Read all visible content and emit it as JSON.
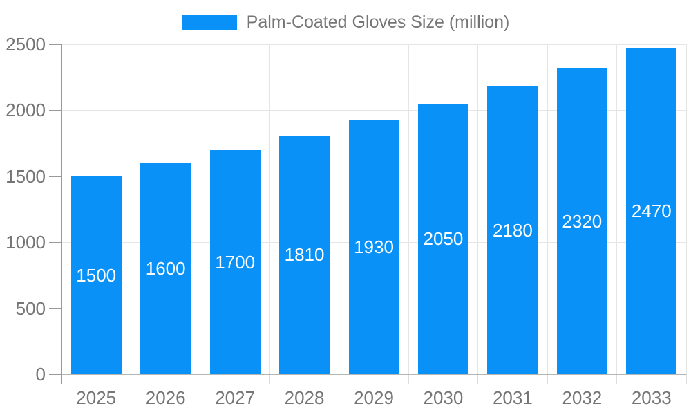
{
  "chart_data": {
    "type": "bar",
    "title": "Palm-Coated Gloves Size (million)",
    "categories": [
      "2025",
      "2026",
      "2027",
      "2028",
      "2029",
      "2030",
      "2031",
      "2032",
      "2033"
    ],
    "values": [
      1500,
      1600,
      1700,
      1810,
      1930,
      2050,
      2180,
      2320,
      2470
    ],
    "data_labels": [
      "1500",
      "1600",
      "1700",
      "1810",
      "1930",
      "2050",
      "2180",
      "2320",
      "2470"
    ],
    "y_tick_labels": [
      "0",
      "500",
      "1000",
      "1500",
      "2000",
      "2500"
    ],
    "xlabel": "",
    "ylabel": "",
    "ylim": [
      0,
      2500
    ],
    "ytick_step": 500,
    "grid": true,
    "legend_position": "top-center",
    "colors": {
      "bar": "#0991f8",
      "bar_label_text": "#ffffff",
      "axis_text": "#757575",
      "gridline": "#e5e5e5",
      "y_axis_line": "#999999",
      "x_axis_line": "#b5b5b5"
    }
  }
}
